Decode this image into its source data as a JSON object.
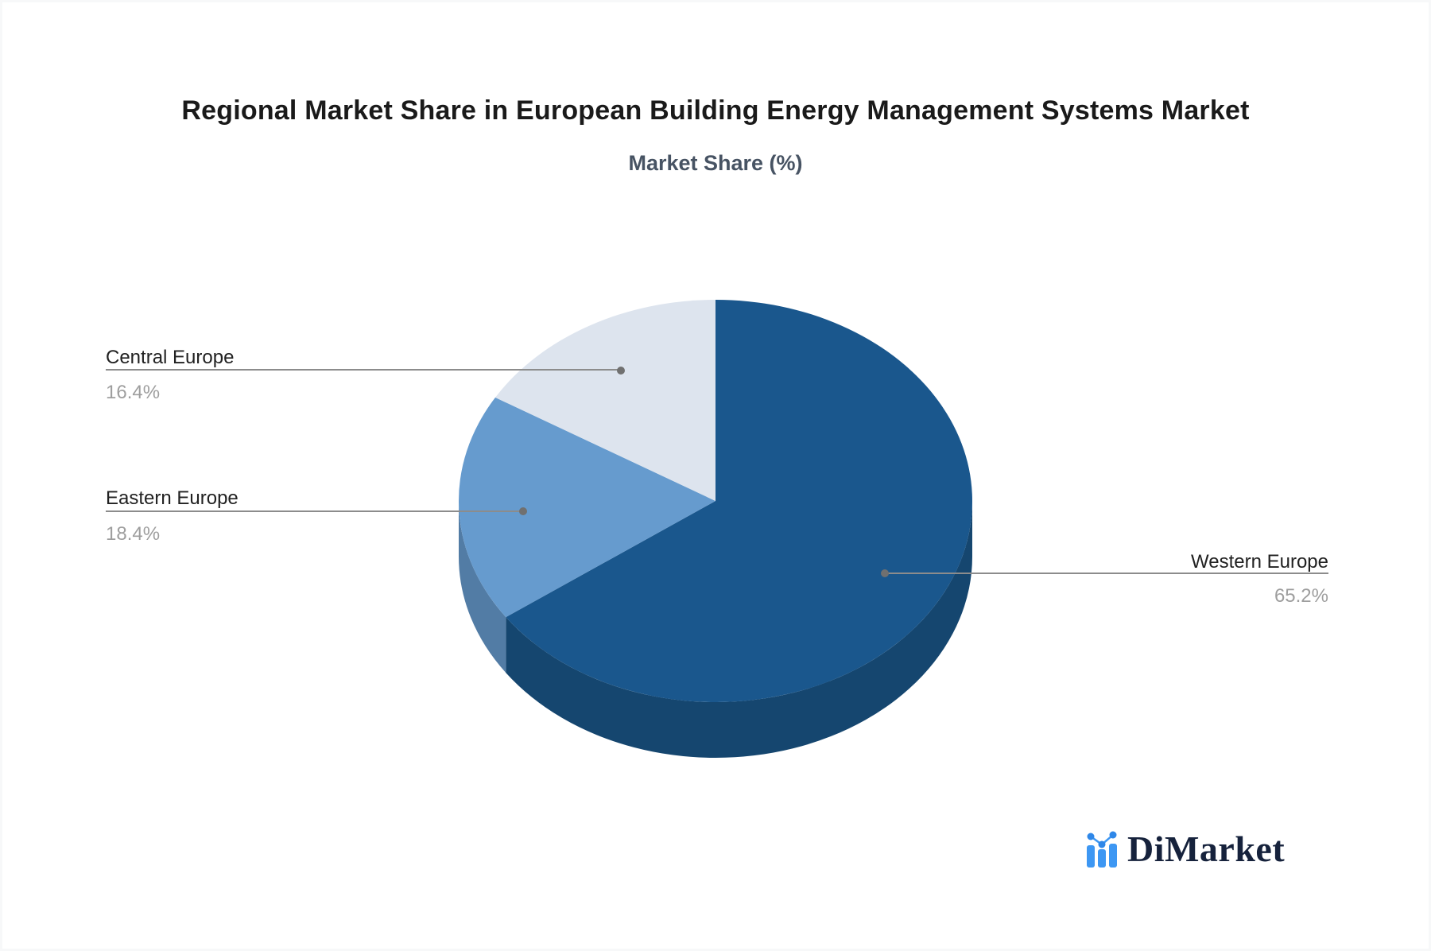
{
  "page": {
    "title": "Regional Market Share in European Building Energy Management Systems Market",
    "subtitle": "Market Share (%)",
    "background_color": "#ffffff",
    "edge_strip_color": "#f7f8f9"
  },
  "chart_data": {
    "type": "pie",
    "title": "Regional Market Share in European Building Energy Management Systems Market",
    "subtitle": "Market Share (%)",
    "unit": "%",
    "effect": "3d",
    "start_angle_deg": 0,
    "direction": "clockwise",
    "legend": "none",
    "labels_outside": true,
    "slices": [
      {
        "label": "Western Europe",
        "value": 65.2,
        "display": "65.2%",
        "color": "#1a578d",
        "side_color": "#15466f"
      },
      {
        "label": "Eastern Europe",
        "value": 18.4,
        "display": "18.4%",
        "color": "#669bce",
        "side_color": "#527ca5"
      },
      {
        "label": "Central Europe",
        "value": 16.4,
        "display": "16.4%",
        "color": "#dde4ee",
        "side_color": "#b6c1d2"
      }
    ],
    "connector_color": "#8c8c8c",
    "connector_dot_color": "#707070",
    "label_name_color": "#212121",
    "label_value_color": "#9e9e9e"
  },
  "branding": {
    "logo_text": "DiMarket",
    "logo_icon": "bar-line-chart-icon",
    "icon_color": "#3d97f3",
    "text_color": "#16223c"
  }
}
